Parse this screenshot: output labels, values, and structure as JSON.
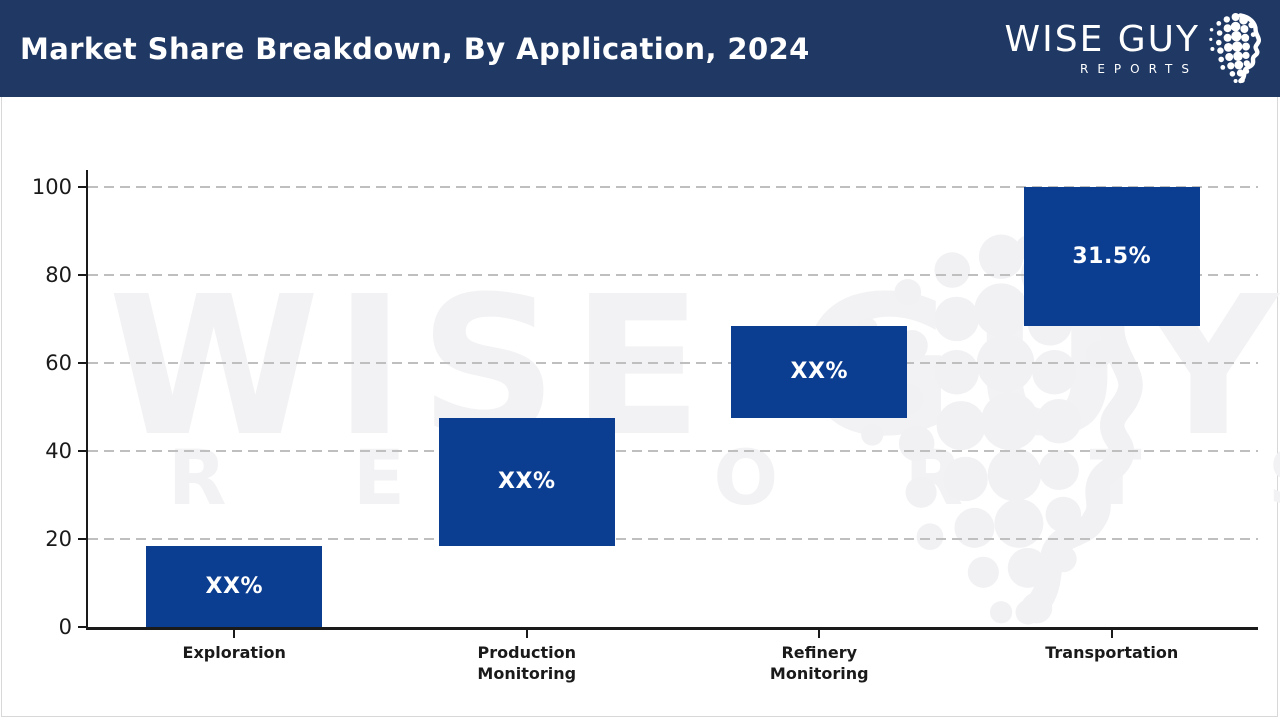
{
  "header": {
    "title": "Market Share Breakdown, By Application, 2024",
    "bg_color": "#1f3864",
    "logo": {
      "brand": "WISE GUY",
      "sub": "REPORTS"
    }
  },
  "watermark": {
    "brand": "WISE GUY",
    "sub": "R E P O R T S"
  },
  "chart_data": {
    "type": "bar",
    "subtype": "floating-waterfall-segments",
    "title": "Market Share Breakdown, By Application, 2024",
    "categories": [
      "Exploration",
      "Production Monitoring",
      "Refinery Monitoring",
      "Transportation"
    ],
    "segments": [
      [
        0,
        18.5
      ],
      [
        18.5,
        47.5
      ],
      [
        47.5,
        68.5
      ],
      [
        68.5,
        100
      ]
    ],
    "bar_labels": [
      "XX%",
      "XX%",
      "XX%",
      "31.5%"
    ],
    "ylim": [
      0,
      100
    ],
    "yticks": [
      0,
      20,
      40,
      60,
      80,
      100
    ],
    "grid": "horizontal-dashed",
    "legend": "none",
    "xlabel": "",
    "ylabel": "",
    "bar_color": "#0b3d91",
    "bar_label_color": "#ffffff",
    "axis_color": "#1a1a1a",
    "gridline_color": "#bfbfbf"
  }
}
